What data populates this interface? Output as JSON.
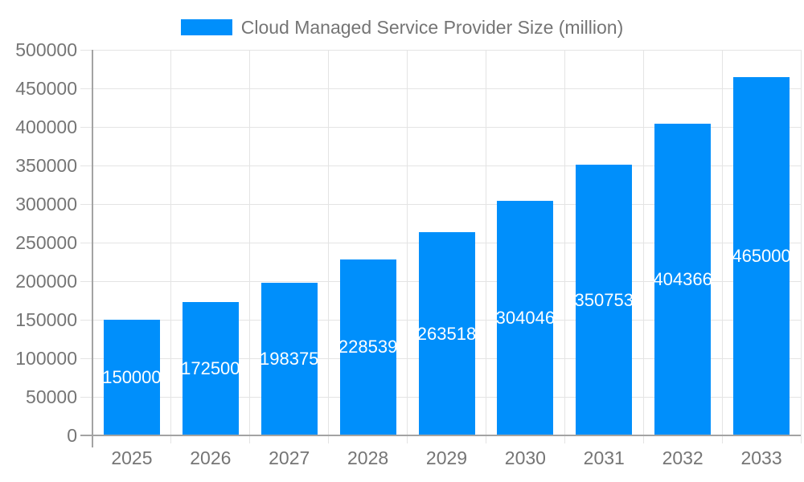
{
  "chart_data": {
    "type": "bar",
    "title": "Cloud Managed Service Provider Size (million)",
    "categories": [
      "2025",
      "2026",
      "2027",
      "2028",
      "2029",
      "2030",
      "2031",
      "2032",
      "2033"
    ],
    "values": [
      150000,
      172500,
      198375,
      228539,
      263518,
      304046,
      350753,
      404366,
      465000
    ],
    "value_labels": [
      "150000",
      "172500",
      "198375",
      "228539",
      "263518",
      "304046",
      "350753",
      "404366",
      "465000"
    ],
    "xlabel": "",
    "ylabel": "",
    "ylim": [
      0,
      500000
    ],
    "ytick_step": 50000,
    "ytick_labels": [
      "0",
      "50000",
      "100000",
      "150000",
      "200000",
      "250000",
      "300000",
      "350000",
      "400000",
      "450000",
      "500000"
    ],
    "grid": true,
    "legend_position": "top",
    "colors": {
      "bar": "#008FFB",
      "value_label": "#ffffff",
      "axis_text": "#757575",
      "grid_line": "#e4e4e4",
      "axis_line": "#a3a3a3",
      "background": "#ffffff"
    }
  }
}
